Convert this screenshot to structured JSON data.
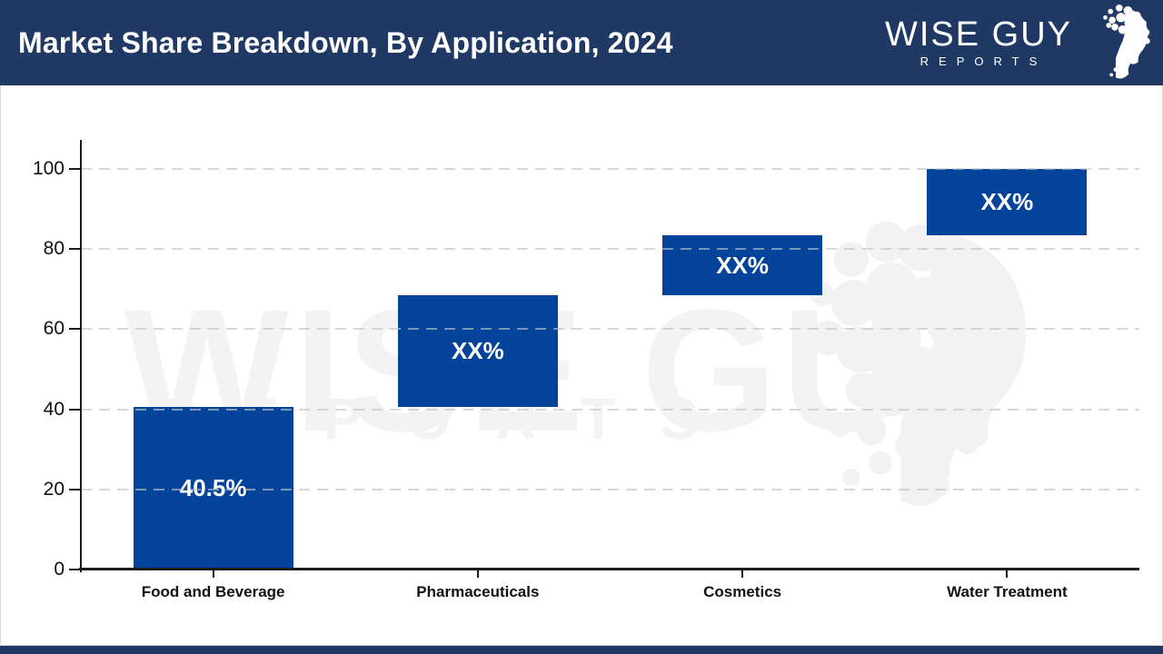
{
  "header": {
    "title": "Market Share Breakdown, By Application, 2024",
    "logo": {
      "line1": "WISE GUY",
      "line2": "REPORTS"
    }
  },
  "watermark": {
    "line1": "WISE GUY",
    "line2": "REPORTS"
  },
  "chart_data": {
    "type": "bar",
    "subtype": "waterfall-stacked-percentage",
    "title": "Market Share Breakdown, By Application, 2024",
    "categories": [
      "Food and Beverage",
      "Pharmaceuticals",
      "Cosmetics",
      "Water Treatment"
    ],
    "series": [
      {
        "name": "Market Share",
        "segments": [
          {
            "category": "Food and Beverage",
            "start": 0,
            "end": 40.5,
            "label": "40.5%"
          },
          {
            "category": "Pharmaceuticals",
            "start": 40.5,
            "end": 68.5,
            "label": "XX%"
          },
          {
            "category": "Cosmetics",
            "start": 68.5,
            "end": 83.4,
            "label": "XX%"
          },
          {
            "category": "Water Treatment",
            "start": 83.4,
            "end": 100,
            "label": "XX%"
          }
        ]
      }
    ],
    "xlabel": "",
    "ylabel": "",
    "yticks": [
      0,
      20,
      40,
      60,
      80,
      100
    ],
    "ylim": [
      0,
      107
    ],
    "grid": "horizontal-dashed",
    "legend": "none",
    "colors": {
      "bar": "#04439C",
      "bar_label": "#FFFFFF",
      "axis": "#1C1C1C",
      "grid": "#D9D9D9",
      "tick_label": "#111111",
      "header_bg": "#203864",
      "watermark": "#F2F2F2"
    }
  }
}
